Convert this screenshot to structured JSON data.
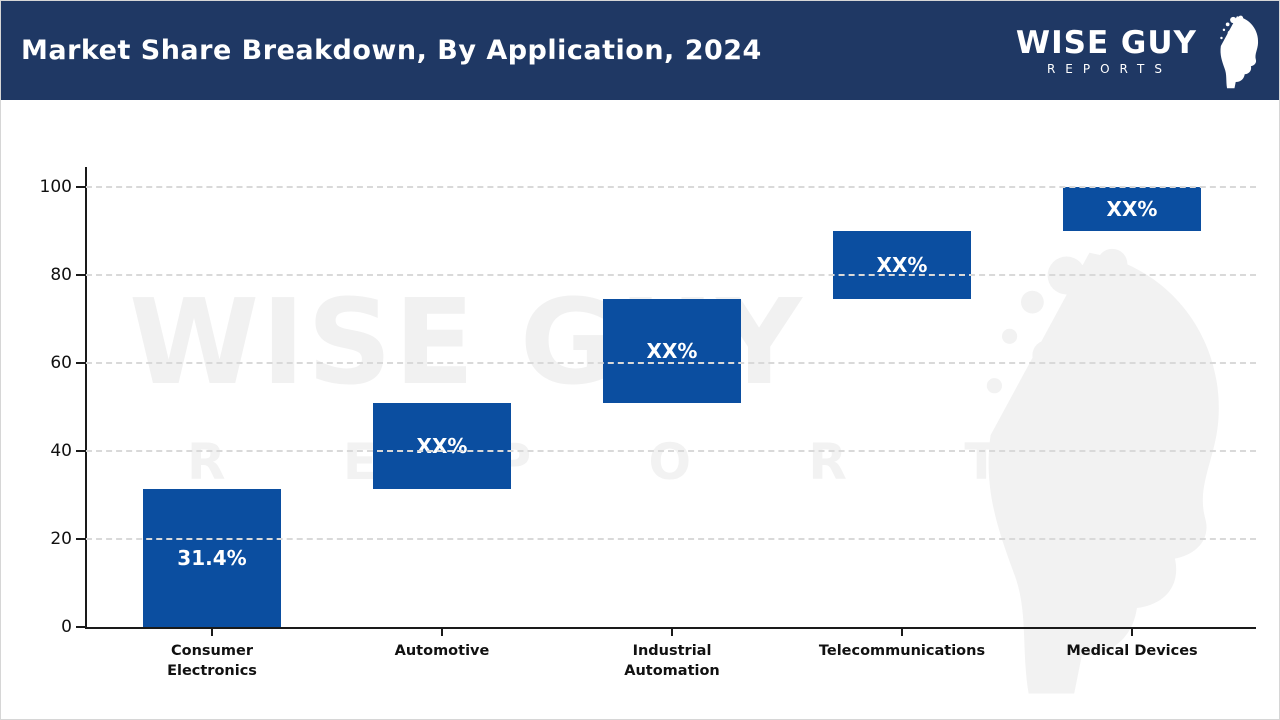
{
  "header": {
    "title": "Market Share Breakdown, By Application, 2024",
    "background": "#1f3864",
    "logo": {
      "line1": "WISE GUY",
      "line2": "REPORTS"
    }
  },
  "watermark": {
    "line1": "WISE GUY",
    "line2": "R E P O R T S"
  },
  "chart_data": {
    "type": "bar",
    "subtype": "waterfall-floating-bars",
    "title": "Market Share Breakdown, By Application, 2024",
    "xlabel": "",
    "ylabel": "",
    "ylim": [
      0,
      100
    ],
    "yticks": [
      0,
      20,
      40,
      60,
      80,
      100
    ],
    "grid": true,
    "legend": "none",
    "bar_color": "#0b4ea0",
    "label_color": "#ffffff",
    "categories": [
      "Consumer Electronics",
      "Automotive",
      "Industrial Automation",
      "Telecommunications",
      "Medical Devices"
    ],
    "category_lines": [
      [
        "Consumer",
        "Electronics"
      ],
      [
        "Automotive"
      ],
      [
        "Industrial",
        "Automation"
      ],
      [
        "Telecommunications"
      ],
      [
        "Medical Devices"
      ]
    ],
    "segments": [
      {
        "category": "Consumer Electronics",
        "start": 0,
        "end": 31.4,
        "label": "31.4%"
      },
      {
        "category": "Automotive",
        "start": 31.4,
        "end": 51.0,
        "label": "XX%"
      },
      {
        "category": "Industrial Automation",
        "start": 51.0,
        "end": 74.5,
        "label": "XX%"
      },
      {
        "category": "Telecommunications",
        "start": 74.5,
        "end": 90.0,
        "label": "XX%"
      },
      {
        "category": "Medical Devices",
        "start": 90.0,
        "end": 100.0,
        "label": "XX%"
      }
    ]
  }
}
